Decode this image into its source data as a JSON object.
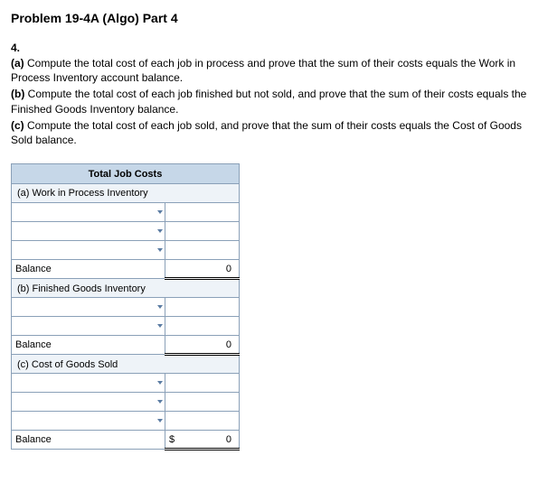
{
  "title": "Problem 19-4A (Algo) Part 4",
  "question_number": "4.",
  "prompts": {
    "a_bold": "(a)",
    "a_text": " Compute the total cost of each job in process and prove that the sum of their costs equals the Work in Process Inventory account balance.",
    "b_bold": "(b)",
    "b_text": " Compute the total cost of each job finished but not sold, and prove that the sum of their costs equals the Finished Goods Inventory balance.",
    "c_bold": "(c)",
    "c_text": " Compute the total cost of each job sold, and prove that the sum of their costs equals the Cost of Goods Sold balance."
  },
  "table": {
    "header": "Total Job Costs",
    "section_a": "(a) Work in Process Inventory",
    "section_b": "(b) Finished Goods Inventory",
    "section_c": "(c) Cost of Goods Sold",
    "balance_label": "Balance",
    "balance_a": "0",
    "balance_b": "0",
    "balance_c": "0",
    "dollar_sign": "$",
    "colors": {
      "header_bg": "#c6d7e8",
      "subheader_bg": "#eef3f8",
      "border": "#8aa0b8"
    },
    "col_widths": {
      "label": 170,
      "value": 82
    }
  }
}
